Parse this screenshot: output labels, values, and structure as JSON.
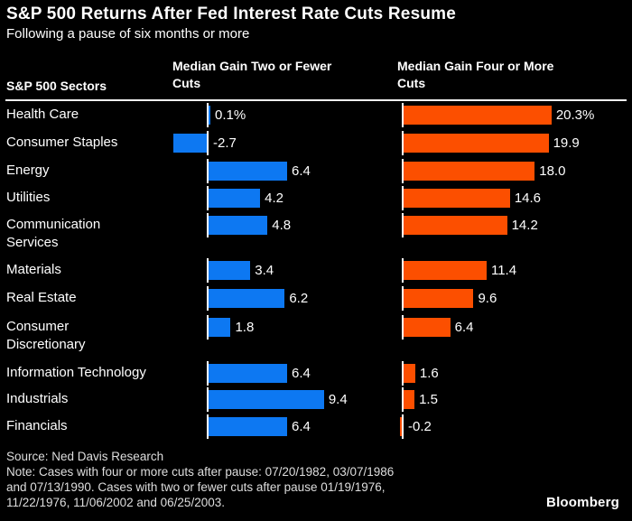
{
  "chart_data": {
    "type": "bar",
    "orientation": "horizontal",
    "title": "S&P 500 Returns After Fed Interest Rate Cuts Resume",
    "subtitle": "Following a pause of six months or more",
    "row_header": "S&P 500 Sectors",
    "value_unit": "%",
    "grid": false,
    "legend_position": "column-headers",
    "categories": [
      "Health Care",
      "Consumer Staples",
      "Energy",
      "Utilities",
      "Communication\nServices",
      "Materials",
      "Real Estate",
      "Consumer\nDiscretionary",
      "Information Technology",
      "Industrials",
      "Financials"
    ],
    "series": [
      {
        "name": "Median Gain Two or Fewer\nCuts",
        "color": "#0d78f2",
        "values": [
          0.1,
          -2.7,
          6.4,
          4.2,
          4.8,
          3.4,
          6.2,
          1.8,
          6.4,
          9.4,
          6.4
        ],
        "display_labels": [
          "0.1%",
          "-2.7",
          "6.4",
          "4.2",
          "4.8",
          "3.4",
          "6.2",
          "1.8",
          "6.4",
          "9.4",
          "6.4"
        ]
      },
      {
        "name": "Median Gain Four or More\nCuts",
        "color": "#fc4f00",
        "values": [
          20.3,
          19.9,
          18.0,
          14.6,
          14.2,
          11.4,
          9.6,
          6.4,
          1.6,
          1.5,
          -0.2
        ],
        "display_labels": [
          "20.3%",
          "19.9",
          "18.0",
          "14.6",
          "14.2",
          "11.4",
          "9.6",
          "6.4",
          "1.6",
          "1.5",
          "-0.2"
        ]
      }
    ]
  },
  "footer": {
    "source": "Source: Ned Davis Research",
    "note_lines": [
      "Note: Cases with four or more cuts after pause: 07/20/1982, 03/07/1986",
      "and 07/13/1990. Cases with two or fewer cuts after pause 01/19/1976,",
      "11/22/1976, 11/06/2002 and 06/25/2003."
    ],
    "brand": "Bloomberg"
  }
}
